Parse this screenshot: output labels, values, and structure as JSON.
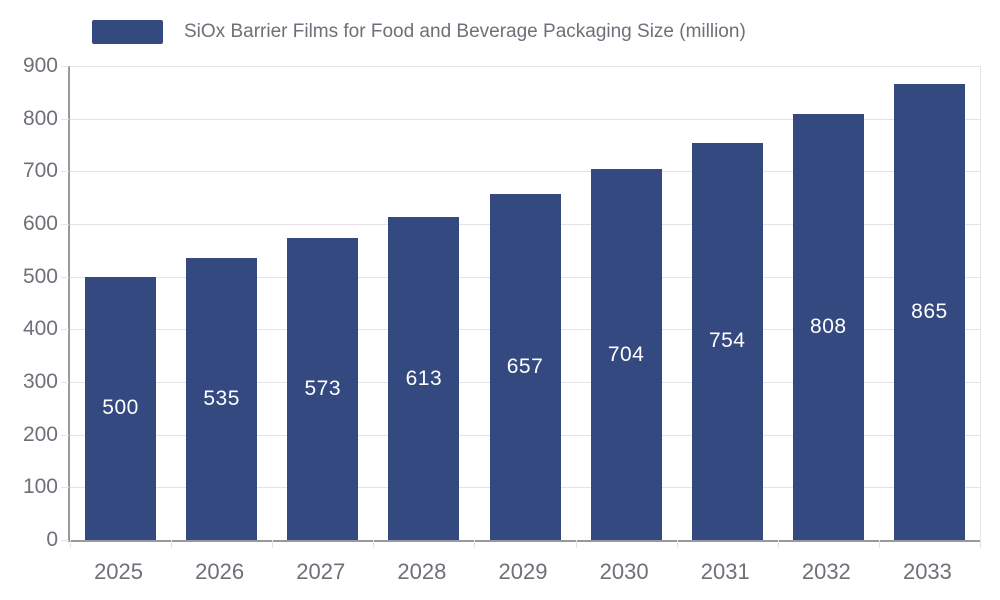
{
  "legend": {
    "items": [
      {
        "label": "SiOx Barrier Films for Food and Beverage Packaging Size (million)"
      }
    ]
  },
  "chart_data": {
    "type": "bar",
    "title": "SiOx Barrier Films for Food and Beverage Packaging Size (million)",
    "categories": [
      "2025",
      "2026",
      "2027",
      "2028",
      "2029",
      "2030",
      "2031",
      "2032",
      "2033"
    ],
    "values": [
      500,
      535,
      573,
      613,
      657,
      704,
      754,
      808,
      865
    ],
    "series_name": "SiOx Barrier Films for Food and Beverage Packaging Size (million)",
    "xlabel": "",
    "ylabel": "",
    "ylim": [
      0,
      900
    ],
    "yticks": [
      0,
      100,
      200,
      300,
      400,
      500,
      600,
      700,
      800,
      900
    ],
    "grid": true,
    "legend_position": "top-left",
    "value_label_position": "inside-center",
    "colors": {
      "bar": "#354981",
      "bar_value_label": "#ffffff",
      "axis_line": "#98989d",
      "grid_line": "#e4e4e8",
      "tick_label": "#6e7079",
      "legend_text": "#6e7079"
    }
  }
}
